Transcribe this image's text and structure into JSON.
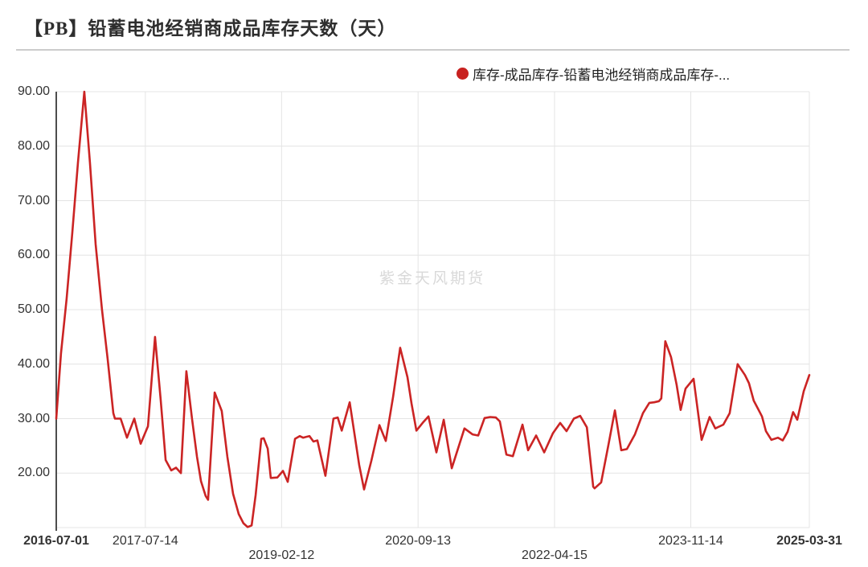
{
  "page": {
    "title": "【PB】铅蓄电池经销商成品库存天数（天）"
  },
  "legend": {
    "label": "库存-成品库存-铅蓄电池经销商成品库存-...",
    "marker_color": "#c8211f"
  },
  "watermark": "紫金天风期货",
  "chart_data": {
    "type": "line",
    "title": "【PB】铅蓄电池经销商成品库存天数（天）",
    "series_name": "库存-成品库存-铅蓄电池经销商成品库存-...",
    "line_color": "#cb2424",
    "grid_color": "#e4e4e4",
    "axis_color": "#4d4d4d",
    "label_color": "#333333",
    "grid_on": true,
    "legend_position": "top-right",
    "x_start_date": "2016-07-01",
    "x_end_date": "2025-03-31",
    "x_unit": "days_from_2016-07-01",
    "x_range": [
      0,
      3195
    ],
    "y_range": [
      10,
      90
    ],
    "y_ticks": [
      {
        "value": 90,
        "label": "90.00"
      },
      {
        "value": 80,
        "label": "80.00"
      },
      {
        "value": 70,
        "label": "70.00"
      },
      {
        "value": 60,
        "label": "60.00"
      },
      {
        "value": 50,
        "label": "50.00"
      },
      {
        "value": 40,
        "label": "40.00"
      },
      {
        "value": 30,
        "label": "30.00"
      },
      {
        "value": 20,
        "label": "20.00"
      }
    ],
    "x_ticks": [
      {
        "day": 0,
        "label": "2016-07-01",
        "bold": true,
        "row": 1
      },
      {
        "day": 378,
        "label": "2017-07-14",
        "bold": false,
        "row": 1
      },
      {
        "day": 956,
        "label": "2019-02-12",
        "bold": false,
        "row": 2
      },
      {
        "day": 1535,
        "label": "2020-09-13",
        "bold": false,
        "row": 1
      },
      {
        "day": 2114,
        "label": "2022-04-15",
        "bold": false,
        "row": 2
      },
      {
        "day": 2692,
        "label": "2023-11-14",
        "bold": false,
        "row": 1
      },
      {
        "day": 3195,
        "label": "2025-03-31",
        "bold": true,
        "row": 1
      }
    ],
    "points": [
      [
        0,
        30
      ],
      [
        20,
        42
      ],
      [
        44,
        52
      ],
      [
        68,
        64
      ],
      [
        92,
        77
      ],
      [
        119,
        90
      ],
      [
        143,
        77
      ],
      [
        167,
        62
      ],
      [
        194,
        50
      ],
      [
        218,
        41
      ],
      [
        242,
        31
      ],
      [
        249,
        30
      ],
      [
        273,
        30
      ],
      [
        300,
        26.5
      ],
      [
        331,
        30
      ],
      [
        358,
        25.4
      ],
      [
        389,
        28.6
      ],
      [
        419,
        45
      ],
      [
        443,
        33.5
      ],
      [
        464,
        22.4
      ],
      [
        488,
        20.5
      ],
      [
        508,
        21
      ],
      [
        529,
        20
      ],
      [
        552,
        38.7
      ],
      [
        576,
        30
      ],
      [
        597,
        23
      ],
      [
        614,
        18.5
      ],
      [
        634,
        15.8
      ],
      [
        644,
        15.1
      ],
      [
        672,
        34.8
      ],
      [
        702,
        31.4
      ],
      [
        726,
        23
      ],
      [
        750,
        16.2
      ],
      [
        774,
        12.5
      ],
      [
        794,
        10.8
      ],
      [
        812,
        10.1
      ],
      [
        829,
        10.4
      ],
      [
        846,
        16
      ],
      [
        870,
        26.3
      ],
      [
        880,
        26.4
      ],
      [
        897,
        24.5
      ],
      [
        910,
        19.1
      ],
      [
        938,
        19.2
      ],
      [
        962,
        20.4
      ],
      [
        982,
        18.4
      ],
      [
        1013,
        26.3
      ],
      [
        1033,
        26.8
      ],
      [
        1047,
        26.5
      ],
      [
        1074,
        26.8
      ],
      [
        1091,
        25.8
      ],
      [
        1108,
        26
      ],
      [
        1142,
        19.5
      ],
      [
        1176,
        30
      ],
      [
        1194,
        30.2
      ],
      [
        1211,
        27.8
      ],
      [
        1245,
        33
      ],
      [
        1285,
        21.5
      ],
      [
        1306,
        17
      ],
      [
        1337,
        22.3
      ],
      [
        1371,
        28.8
      ],
      [
        1398,
        25.9
      ],
      [
        1429,
        34
      ],
      [
        1459,
        43
      ],
      [
        1490,
        37.6
      ],
      [
        1507,
        32.8
      ],
      [
        1528,
        27.8
      ],
      [
        1558,
        29.4
      ],
      [
        1579,
        30.4
      ],
      [
        1613,
        23.8
      ],
      [
        1644,
        29.8
      ],
      [
        1678,
        20.9
      ],
      [
        1732,
        28.2
      ],
      [
        1766,
        27.1
      ],
      [
        1790,
        26.9
      ],
      [
        1817,
        30.1
      ],
      [
        1841,
        30.3
      ],
      [
        1865,
        30.2
      ],
      [
        1882,
        29.5
      ],
      [
        1910,
        23.4
      ],
      [
        1937,
        23.1
      ],
      [
        1978,
        28.9
      ],
      [
        2002,
        24.2
      ],
      [
        2036,
        26.9
      ],
      [
        2070,
        23.8
      ],
      [
        2107,
        27.3
      ],
      [
        2138,
        29.2
      ],
      [
        2165,
        27.7
      ],
      [
        2196,
        30
      ],
      [
        2223,
        30.5
      ],
      [
        2251,
        28.4
      ],
      [
        2278,
        17.5
      ],
      [
        2284,
        17.2
      ],
      [
        2312,
        18.3
      ],
      [
        2342,
        25
      ],
      [
        2370,
        31.5
      ],
      [
        2397,
        24.2
      ],
      [
        2421,
        24.4
      ],
      [
        2455,
        27.1
      ],
      [
        2489,
        31
      ],
      [
        2516,
        32.9
      ],
      [
        2537,
        33
      ],
      [
        2557,
        33.2
      ],
      [
        2567,
        33.7
      ],
      [
        2584,
        44.2
      ],
      [
        2608,
        41.3
      ],
      [
        2632,
        36.2
      ],
      [
        2649,
        31.6
      ],
      [
        2670,
        35.5
      ],
      [
        2704,
        37.3
      ],
      [
        2738,
        26.1
      ],
      [
        2772,
        30.3
      ],
      [
        2796,
        28.2
      ],
      [
        2830,
        28.9
      ],
      [
        2857,
        31
      ],
      [
        2891,
        40
      ],
      [
        2922,
        38
      ],
      [
        2939,
        36.5
      ],
      [
        2959,
        33.3
      ],
      [
        2976,
        31.9
      ],
      [
        2994,
        30.4
      ],
      [
        3011,
        27.7
      ],
      [
        3034,
        26.1
      ],
      [
        3062,
        26.5
      ],
      [
        3082,
        26
      ],
      [
        3103,
        27.6
      ],
      [
        3126,
        31.2
      ],
      [
        3144,
        29.8
      ],
      [
        3171,
        35
      ],
      [
        3195,
        38
      ]
    ]
  }
}
